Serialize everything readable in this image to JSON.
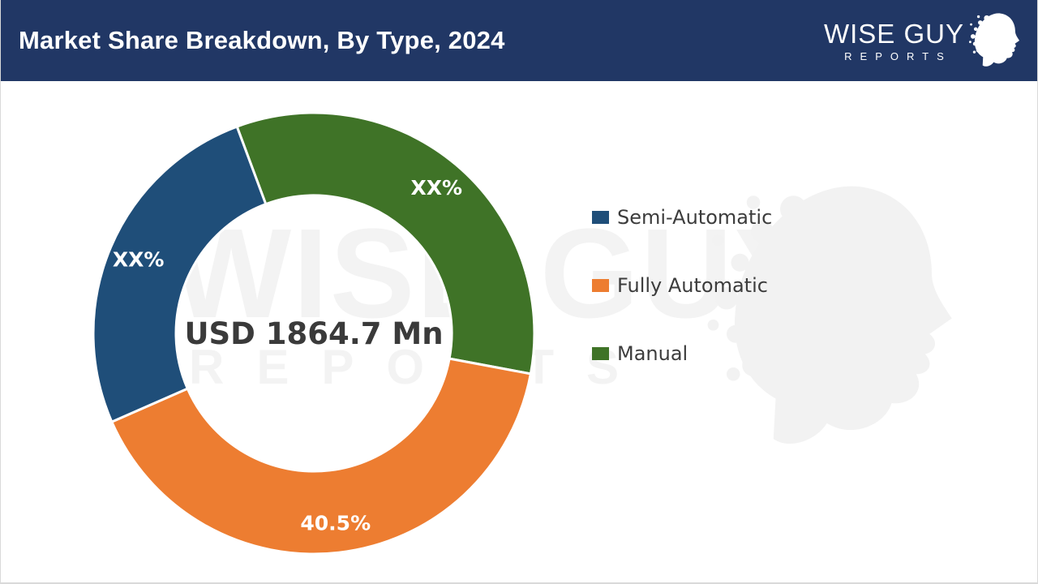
{
  "header": {
    "title": "Market Share Breakdown, By Type, 2024",
    "background_color": "#213765",
    "logo": {
      "line1": "WISE GUY",
      "line2": "REPORTS"
    }
  },
  "watermark": {
    "line1": "WISE GUY",
    "line2": "REPORTS"
  },
  "chart_data": {
    "type": "donut",
    "title": "Market Share Breakdown, By Type, 2024",
    "center_label": "USD 1864.7 Mn",
    "start_angle_deg": -20.4,
    "slices": [
      {
        "name": "Manual",
        "label": "XX%",
        "value_pct": 33.6,
        "value_is_estimate": true,
        "color": "#3f7327"
      },
      {
        "name": "Fully Automatic",
        "label": "40.5%",
        "value_pct": 40.5,
        "value_is_estimate": false,
        "color": "#ed7d31"
      },
      {
        "name": "Semi-Automatic",
        "label": "XX%",
        "value_pct": 25.9,
        "value_is_estimate": true,
        "color": "#1f4e79"
      }
    ],
    "legend": [
      {
        "name": "Semi-Automatic",
        "color": "#1f4e79"
      },
      {
        "name": "Fully Automatic",
        "color": "#ed7d31"
      },
      {
        "name": "Manual",
        "color": "#3f7327"
      }
    ],
    "legend_position": "right"
  }
}
